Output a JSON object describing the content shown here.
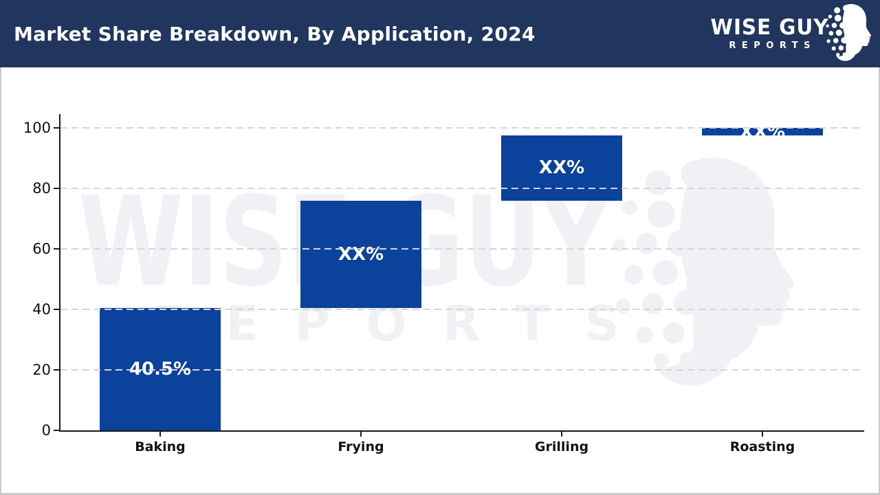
{
  "header": {
    "title": "Market Share Breakdown, By Application, 2024",
    "logo": {
      "line1": "WISE GUY",
      "line2": "REPORTS"
    }
  },
  "watermark": {
    "line1": "WISE GUY",
    "line2": "REPORTS"
  },
  "chart_data": {
    "type": "bar",
    "variant": "waterfall",
    "title": "Market Share Breakdown, By Application, 2024",
    "categories": [
      "Baking",
      "Frying",
      "Grilling",
      "Roasting"
    ],
    "segments": [
      {
        "category": "Baking",
        "start": 0,
        "end": 40.5,
        "value": 40.5,
        "label": "40.5%"
      },
      {
        "category": "Frying",
        "start": 40.5,
        "end": 76,
        "value": 35.5,
        "label": "XX%"
      },
      {
        "category": "Grilling",
        "start": 76,
        "end": 97.5,
        "value": 21.5,
        "label": "XX%"
      },
      {
        "category": "Roasting",
        "start": 97.5,
        "end": 100,
        "value": 2.5,
        "label": "XX%"
      }
    ],
    "xlabel": "",
    "ylabel": "",
    "ylim": [
      0,
      100
    ],
    "yticks": [
      0,
      20,
      40,
      60,
      80,
      100
    ],
    "grid": "dashed-horizontal",
    "legend": "none",
    "bar_color": "#0A429C",
    "label_color": "#ffffff",
    "header_color": "#21365E",
    "gridline_color": "#d6d6d6"
  }
}
